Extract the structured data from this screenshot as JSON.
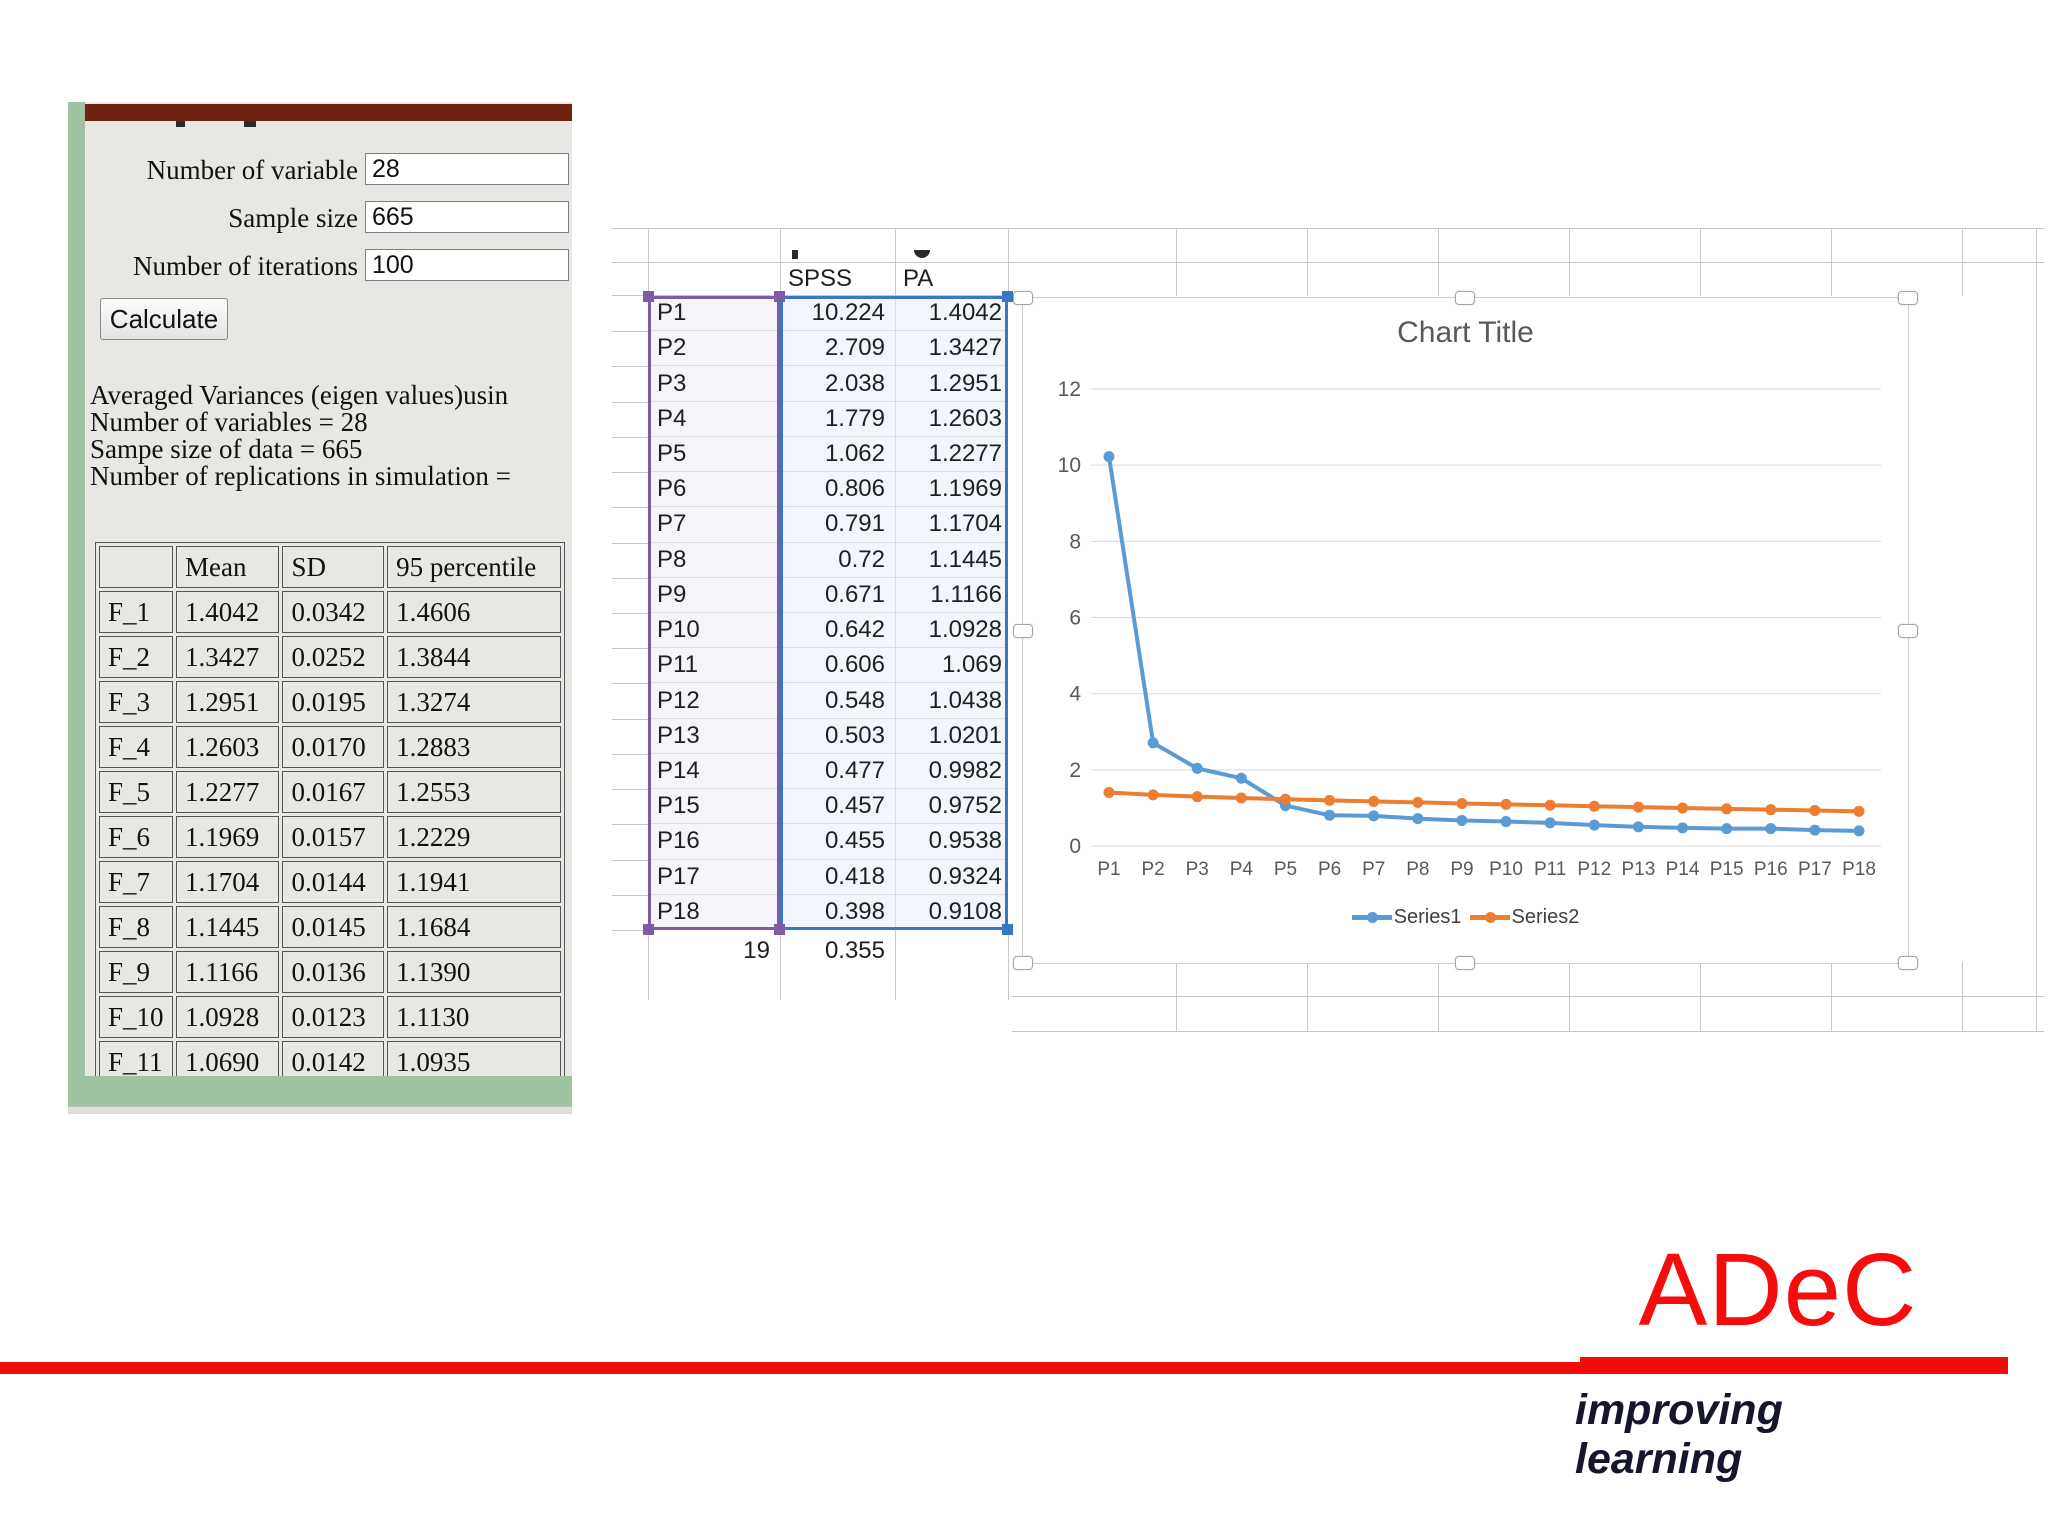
{
  "form": {
    "fields": [
      {
        "label": "Number of variable",
        "value": "28"
      },
      {
        "label": "Sample size",
        "value": "665"
      },
      {
        "label": "Number of iterations",
        "value": "100"
      }
    ],
    "calculate_label": "Calculate",
    "result_lines": [
      "Averaged Variances (eigen values)usin",
      "Number of variables = 28",
      "Sampe size of data = 665",
      "Number of replications in simulation ="
    ],
    "table": {
      "headers": [
        "",
        "Mean",
        "SD",
        "95 percentile"
      ],
      "rows": [
        [
          "F_1",
          "1.4042",
          "0.0342",
          "1.4606"
        ],
        [
          "F_2",
          "1.3427",
          "0.0252",
          "1.3844"
        ],
        [
          "F_3",
          "1.2951",
          "0.0195",
          "1.3274"
        ],
        [
          "F_4",
          "1.2603",
          "0.0170",
          "1.2883"
        ],
        [
          "F_5",
          "1.2277",
          "0.0167",
          "1.2553"
        ],
        [
          "F_6",
          "1.1969",
          "0.0157",
          "1.2229"
        ],
        [
          "F_7",
          "1.1704",
          "0.0144",
          "1.1941"
        ],
        [
          "F_8",
          "1.1445",
          "0.0145",
          "1.1684"
        ],
        [
          "F_9",
          "1.1166",
          "0.0136",
          "1.1390"
        ],
        [
          "F_10",
          "1.0928",
          "0.0123",
          "1.1130"
        ],
        [
          "F_11",
          "1.0690",
          "0.0142",
          "1.0935"
        ]
      ]
    }
  },
  "spreadsheet": {
    "columns": [
      "SPSS",
      "PA"
    ],
    "rows": [
      {
        "label": "P1",
        "spss": "10.224",
        "pa": "1.4042"
      },
      {
        "label": "P2",
        "spss": "2.709",
        "pa": "1.3427"
      },
      {
        "label": "P3",
        "spss": "2.038",
        "pa": "1.2951"
      },
      {
        "label": "P4",
        "spss": "1.779",
        "pa": "1.2603"
      },
      {
        "label": "P5",
        "spss": "1.062",
        "pa": "1.2277"
      },
      {
        "label": "P6",
        "spss": "0.806",
        "pa": "1.1969"
      },
      {
        "label": "P7",
        "spss": "0.791",
        "pa": "1.1704"
      },
      {
        "label": "P8",
        "spss": "0.72",
        "pa": "1.1445"
      },
      {
        "label": "P9",
        "spss": "0.671",
        "pa": "1.1166"
      },
      {
        "label": "P10",
        "spss": "0.642",
        "pa": "1.0928"
      },
      {
        "label": "P11",
        "spss": "0.606",
        "pa": "1.069"
      },
      {
        "label": "P12",
        "spss": "0.548",
        "pa": "1.0438"
      },
      {
        "label": "P13",
        "spss": "0.503",
        "pa": "1.0201"
      },
      {
        "label": "P14",
        "spss": "0.477",
        "pa": "0.9982"
      },
      {
        "label": "P15",
        "spss": "0.457",
        "pa": "0.9752"
      },
      {
        "label": "P16",
        "spss": "0.455",
        "pa": "0.9538"
      },
      {
        "label": "P17",
        "spss": "0.418",
        "pa": "0.9324"
      },
      {
        "label": "P18",
        "spss": "0.398",
        "pa": "0.9108"
      }
    ],
    "footer_row": {
      "label": "19",
      "spss": "0.355"
    },
    "selection_colors": {
      "label_column": "#7e5ba6",
      "data_columns": "#3a76c4"
    }
  },
  "chart_data": {
    "type": "line",
    "title": "Chart Title",
    "categories": [
      "P1",
      "P2",
      "P3",
      "P4",
      "P5",
      "P6",
      "P7",
      "P8",
      "P9",
      "P10",
      "P11",
      "P12",
      "P13",
      "P14",
      "P15",
      "P16",
      "P17",
      "P18"
    ],
    "series": [
      {
        "name": "Series1",
        "color": "#5b9bd5",
        "values": [
          10.224,
          2.709,
          2.038,
          1.779,
          1.062,
          0.806,
          0.791,
          0.72,
          0.671,
          0.642,
          0.606,
          0.548,
          0.503,
          0.477,
          0.457,
          0.455,
          0.418,
          0.398
        ]
      },
      {
        "name": "Series2",
        "color": "#ed7d31",
        "values": [
          1.4042,
          1.3427,
          1.2951,
          1.2603,
          1.2277,
          1.1969,
          1.1704,
          1.1445,
          1.1166,
          1.0928,
          1.069,
          1.0438,
          1.0201,
          0.9982,
          0.9752,
          0.9538,
          0.9324,
          0.9108
        ]
      }
    ],
    "ylim": [
      0,
      12
    ],
    "ytick_step": 2,
    "grid": true,
    "legend_position": "bottom"
  },
  "footer": {
    "logo_text": "ADeC",
    "tagline": "improving learning",
    "accent_color": "#f20d0d"
  }
}
